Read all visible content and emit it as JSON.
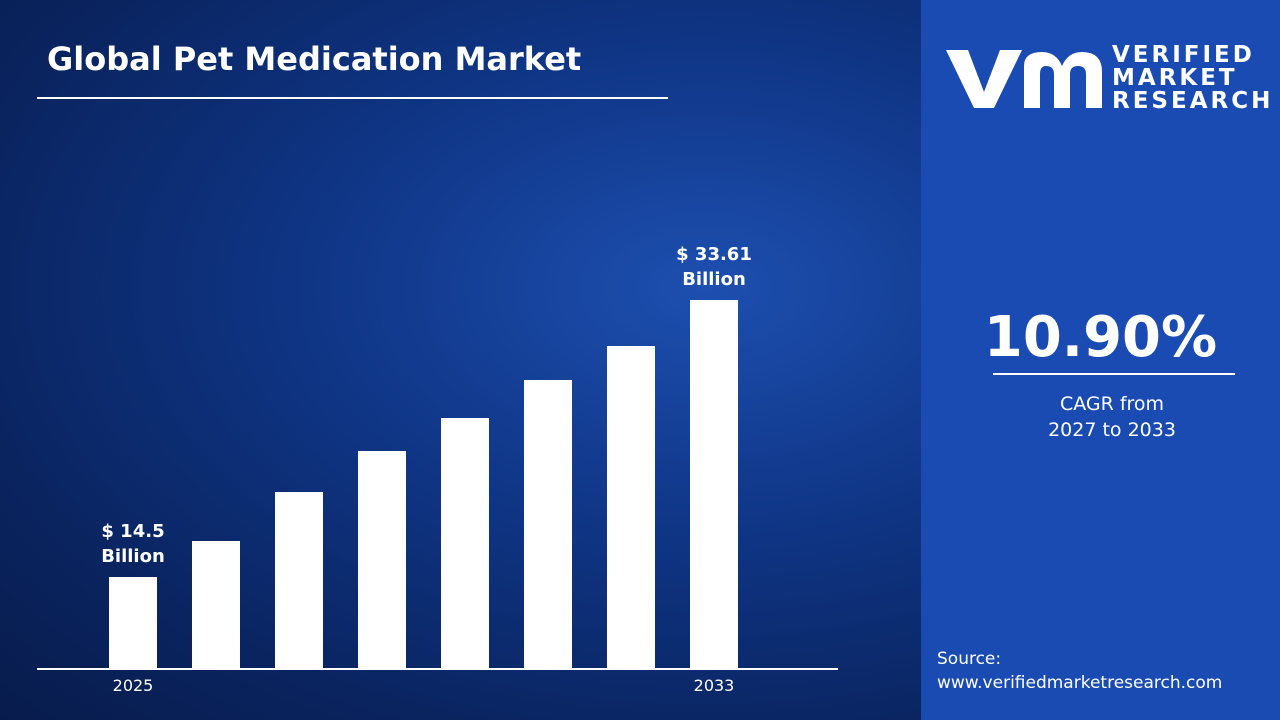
{
  "chart_data": {
    "type": "bar",
    "title": "Global Pet Medication Market",
    "categories": [
      "2025",
      null,
      null,
      null,
      null,
      null,
      null,
      "2033"
    ],
    "values": [
      14.5,
      16.98,
      20.37,
      23.19,
      25.47,
      28.09,
      30.44,
      33.61
    ],
    "value_labels": [
      "$ 14.5 Billion",
      null,
      null,
      null,
      null,
      null,
      null,
      "$ 33.61 Billion"
    ],
    "color": "#ffffff"
  },
  "cagr": {
    "value": "10.90%",
    "label": "CAGR from 2027 to 2033"
  },
  "logo": {
    "line1": "VERIFIED",
    "line2": "MARKET",
    "line3": "RESEARCH"
  },
  "source": {
    "label": "Source:",
    "url": "www.verifiedmarketresearch.com"
  }
}
